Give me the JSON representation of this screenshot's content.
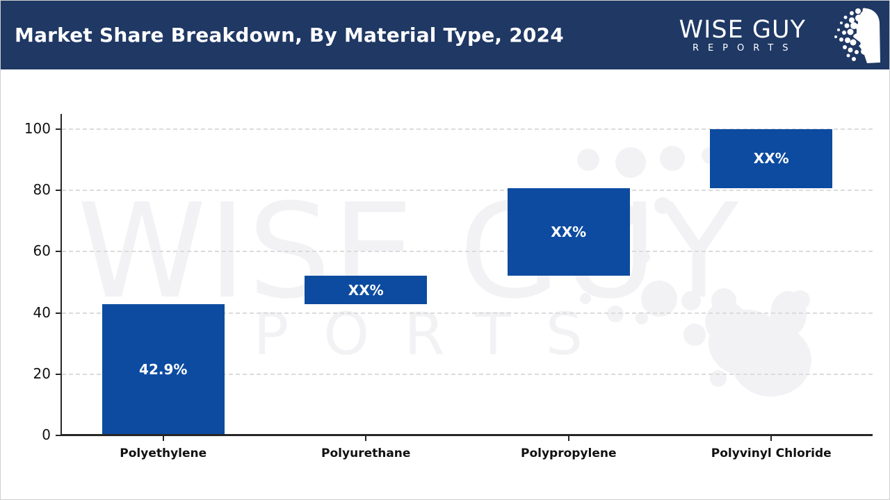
{
  "header": {
    "title": "Market Share Breakdown, By Material Type, 2024",
    "bg_color": "#1F3864",
    "logo": {
      "line1": "WISE GUY",
      "line2": "REPORTS",
      "icon": "dotted-head-profile-icon"
    }
  },
  "watermark": {
    "line1": "WISE GUY",
    "line2": "REPORTS",
    "icon": "dotted-head-profile-watermark"
  },
  "chart_data": {
    "type": "bar",
    "subtype": "waterfall",
    "title": "Market Share Breakdown, By Material Type, 2024",
    "xlabel": "",
    "ylabel": "",
    "categories": [
      "Polyethylene",
      "Polyurethane",
      "Polypropylene",
      "Polyvinyl Chloride"
    ],
    "segments": [
      {
        "category": "Polyethylene",
        "label": "42.9%",
        "start": 0,
        "end": 42.9
      },
      {
        "category": "Polyurethane",
        "label": "XX%",
        "start": 42.9,
        "end": 52.1
      },
      {
        "category": "Polypropylene",
        "label": "XX%",
        "start": 52.1,
        "end": 80.8
      },
      {
        "category": "Polyvinyl Chloride",
        "label": "XX%",
        "start": 80.8,
        "end": 100
      }
    ],
    "bar_labels": [
      "42.9%",
      "XX%",
      "XX%",
      "XX%"
    ],
    "y_ticks": [
      0,
      20,
      40,
      60,
      80,
      100
    ],
    "ylim": [
      0,
      105
    ],
    "bar_color": "#0D4BA0",
    "label_color": "#FFFFFF",
    "grid": "horizontal-dashed",
    "legend": "none"
  }
}
